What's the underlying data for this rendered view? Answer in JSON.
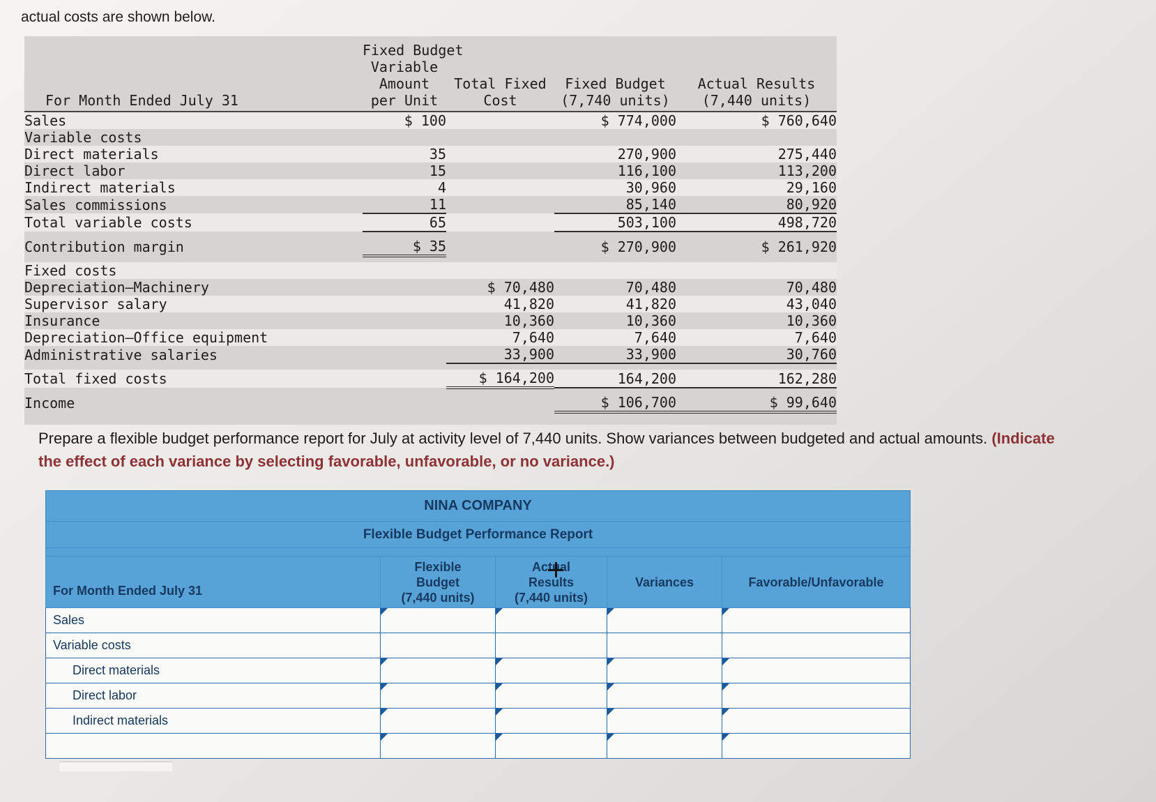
{
  "page": {
    "intro_text": "actual costs are shown below.",
    "instruction_main": "Prepare a flexible budget performance report for July at activity level of 7,440 units. Show variances between budgeted and actual amounts. ",
    "instruction_emphasis": "(Indicate the effect of each variance by selecting favorable, unfavorable, or no variance.)"
  },
  "fixed_budget_table": {
    "header": {
      "row_label": "For Month Ended July 31",
      "col_per_unit": "Fixed Budget\nVariable\nAmount\nper Unit",
      "col_total_fixed": "Total Fixed\nCost",
      "col_fixed_budget": "Fixed Budget\n(7,740 units)",
      "col_actual": "Actual Results\n(7,440 units)"
    },
    "rows": [
      {
        "label": "Sales",
        "indent": 0,
        "c1": "$ 100",
        "c3": "$ 774,000",
        "c4": "$ 760,640"
      },
      {
        "label": "Variable costs",
        "indent": 0
      },
      {
        "label": "Direct materials",
        "indent": 2,
        "c1": "35",
        "c3": "270,900",
        "c4": "275,440"
      },
      {
        "label": "Direct labor",
        "indent": 2,
        "c1": "15",
        "c3": "116,100",
        "c4": "113,200"
      },
      {
        "label": "Indirect materials",
        "indent": 2,
        "c1": "4",
        "c3": "30,960",
        "c4": "29,160"
      },
      {
        "label": "Sales commissions",
        "indent": 2,
        "c1": "11",
        "c3": "85,140",
        "c4": "80,920",
        "u1": "single",
        "u3": "single",
        "u4": "single"
      },
      {
        "label": "Total variable costs",
        "indent": 2,
        "c1": "65",
        "c3": "503,100",
        "c4": "498,720",
        "u1": "single",
        "u3": "single",
        "u4": "single"
      },
      {
        "label": "Contribution margin",
        "indent": 0,
        "gap": true,
        "c1": "$ 35",
        "c3": "$ 270,900",
        "c4": "$ 261,920",
        "u1": "double"
      },
      {
        "label": "Fixed costs",
        "indent": 0,
        "gap": true
      },
      {
        "label": "Depreciation—Machinery",
        "indent": 2,
        "c2": "$ 70,480",
        "c3": "70,480",
        "c4": "70,480"
      },
      {
        "label": "Supervisor salary",
        "indent": 2,
        "c2": "41,820",
        "c3": "41,820",
        "c4": "43,040"
      },
      {
        "label": "Insurance",
        "indent": 2,
        "c2": "10,360",
        "c3": "10,360",
        "c4": "10,360"
      },
      {
        "label": "Depreciation—Office equipment",
        "indent": 2,
        "c2": "7,640",
        "c3": "7,640",
        "c4": "7,640"
      },
      {
        "label": "Administrative salaries",
        "indent": 2,
        "c2": "33,900",
        "c3": "33,900",
        "c4": "30,760",
        "u2": "single",
        "u3": "single",
        "u4": "single"
      },
      {
        "label": "Total fixed costs",
        "indent": 2,
        "gap": true,
        "c2": "$ 164,200",
        "c3": "164,200",
        "c4": "162,280",
        "u2": "double",
        "u3": "single",
        "u4": "single"
      },
      {
        "label": "Income",
        "indent": 1,
        "gap": true,
        "c3": "$ 106,700",
        "c4": "$ 99,640",
        "u3": "double",
        "u4": "double"
      }
    ]
  },
  "report": {
    "company": "NINA COMPANY",
    "title": "Flexible Budget Performance Report",
    "col_headers": {
      "label": "For Month Ended July 31",
      "flexible_budget": "Flexible\nBudget\n(7,440 units)",
      "actual_results": "Actual\nResults\n(7,440 units)",
      "variances": "Variances",
      "favorable": "Favorable/Unfavorable"
    },
    "rows": [
      {
        "label": "Sales",
        "indent": 0,
        "inputs": true
      },
      {
        "label": "Variable costs",
        "indent": 0,
        "inputs": false
      },
      {
        "label": "Direct materials",
        "indent": 1,
        "inputs": true
      },
      {
        "label": "Direct labor",
        "indent": 1,
        "inputs": true
      },
      {
        "label": "Indirect materials",
        "indent": 1,
        "inputs": true
      },
      {
        "label": "",
        "indent": 1,
        "inputs": true
      },
      {
        "label": "",
        "indent": 1,
        "inputs": true
      }
    ]
  }
}
